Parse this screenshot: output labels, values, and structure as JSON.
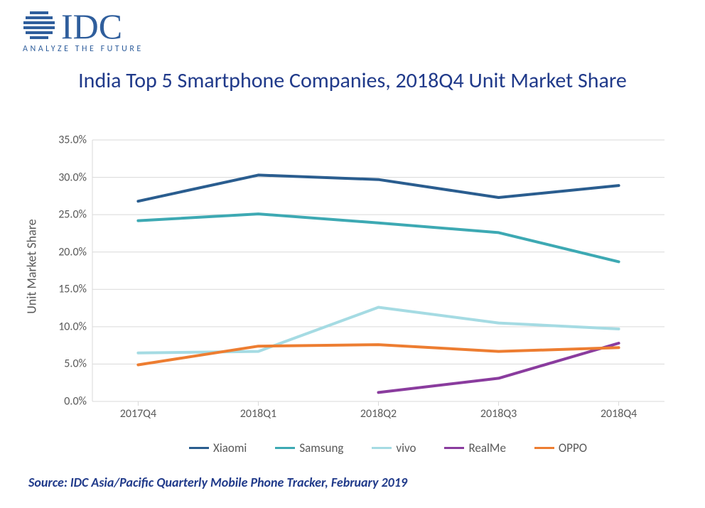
{
  "logo": {
    "text": "IDC",
    "tagline": "ANALYZE THE FUTURE",
    "bar_color": "#2f5e9c",
    "text_color": "#2f5e9c"
  },
  "chart": {
    "type": "line",
    "title": "India Top 5 Smartphone Companies, 2018Q4 Unit Market Share",
    "title_color": "#203a8a",
    "title_fontsize": 30,
    "background_color": "#ffffff",
    "plot_border_color": "#d9d9d9",
    "gridline_color": "#d9d9d9",
    "ylabel": "Unit Market Share",
    "ylabel_color": "#595959",
    "ylabel_fontsize": 18,
    "ylim": [
      0,
      35
    ],
    "ytick_step": 5,
    "ytick_format": "percent1",
    "yticks": [
      "0.0%",
      "5.0%",
      "10.0%",
      "15.0%",
      "20.0%",
      "25.0%",
      "30.0%",
      "35.0%"
    ],
    "categories": [
      "2017Q4",
      "2018Q1",
      "2018Q2",
      "2018Q3",
      "2018Q4"
    ],
    "tick_label_color": "#595959",
    "tick_label_fontsize": 16,
    "line_width": 4,
    "series": [
      {
        "name": "Xiaomi",
        "color": "#2a5d8f",
        "values": [
          26.8,
          30.3,
          29.7,
          27.3,
          28.9
        ]
      },
      {
        "name": "Samsung",
        "color": "#3da9b3",
        "values": [
          24.2,
          25.1,
          23.9,
          22.6,
          18.7
        ]
      },
      {
        "name": "vivo",
        "color": "#a5dbe3",
        "values": [
          6.5,
          6.7,
          12.6,
          10.5,
          9.7
        ]
      },
      {
        "name": "RealMe",
        "color": "#8a3c9e",
        "values": [
          null,
          null,
          1.2,
          3.1,
          7.8
        ]
      },
      {
        "name": "OPPO",
        "color": "#ed7d31",
        "values": [
          4.9,
          7.4,
          7.6,
          6.7,
          7.2
        ]
      }
    ],
    "source": "Source: IDC Asia/Pacific Quarterly Mobile Phone Tracker, February 2019",
    "source_color": "#203a8a",
    "source_fontsize": 18
  }
}
